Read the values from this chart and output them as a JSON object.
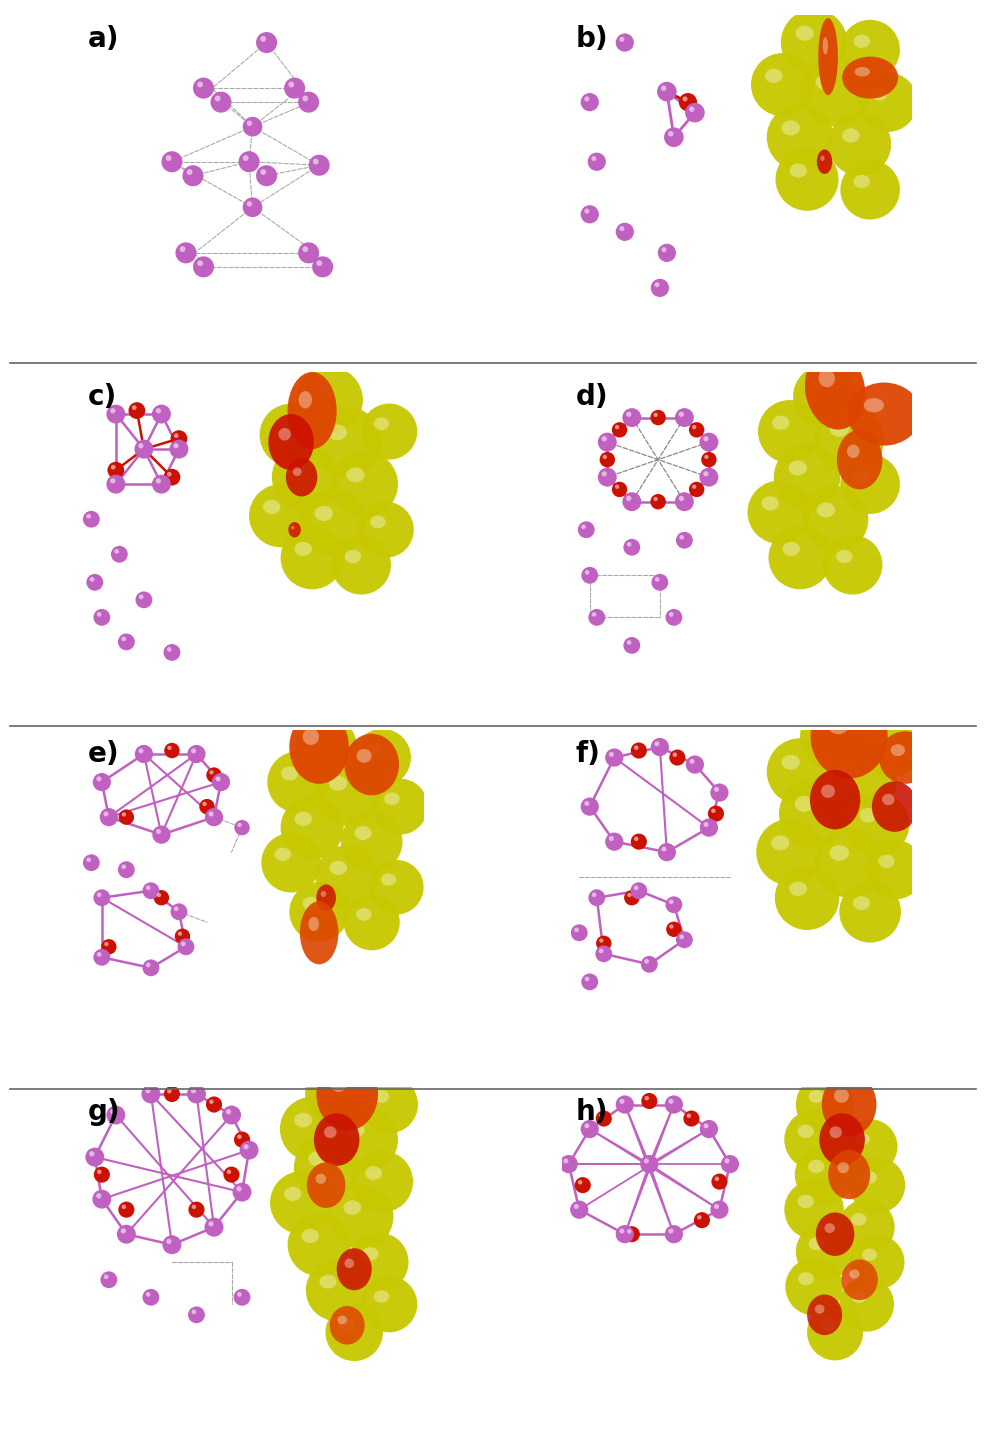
{
  "figure_width": 9.86,
  "figure_height": 14.52,
  "dpi": 100,
  "background_color": "#ffffff",
  "panel_labels": [
    "a)",
    "b)",
    "c)",
    "d)",
    "e)",
    "f)",
    "g)",
    "h)"
  ],
  "label_fontsize": 20,
  "purple_color": "#C060C0",
  "red_color": "#CC1100",
  "yellow_color": "#C8C800",
  "orange_color": "#DD4400",
  "bond_purple": "#C060C0",
  "bond_red": "#CC1100",
  "bond_gray": "#888888",
  "dashed_color": "#AAAAAA",
  "separator_color": "#666666"
}
